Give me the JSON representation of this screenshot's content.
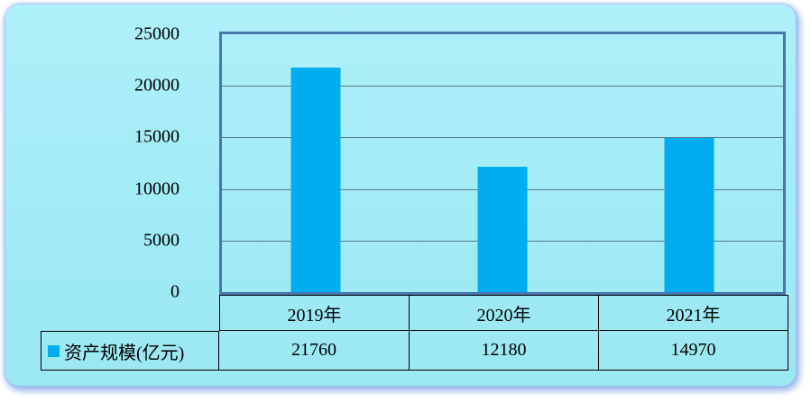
{
  "chart_data": {
    "type": "bar",
    "categories": [
      "2019年",
      "2020年",
      "2021年"
    ],
    "values": [
      21760,
      12180,
      14970
    ],
    "series_label": "资产规模(亿元)",
    "yticks": [
      0,
      5000,
      10000,
      15000,
      20000,
      25000
    ],
    "ylim": [
      0,
      25000
    ],
    "grid": true,
    "legend_position": "data-table-left",
    "title": "",
    "xlabel": "",
    "ylabel": "",
    "colors": {
      "bar": "#00aeef",
      "background": "#a3ecf6",
      "plot_border": "#4677ad",
      "gridline": "#5b7a8e",
      "table_border": "#000000",
      "frame_glow": "#97b5ef"
    }
  }
}
